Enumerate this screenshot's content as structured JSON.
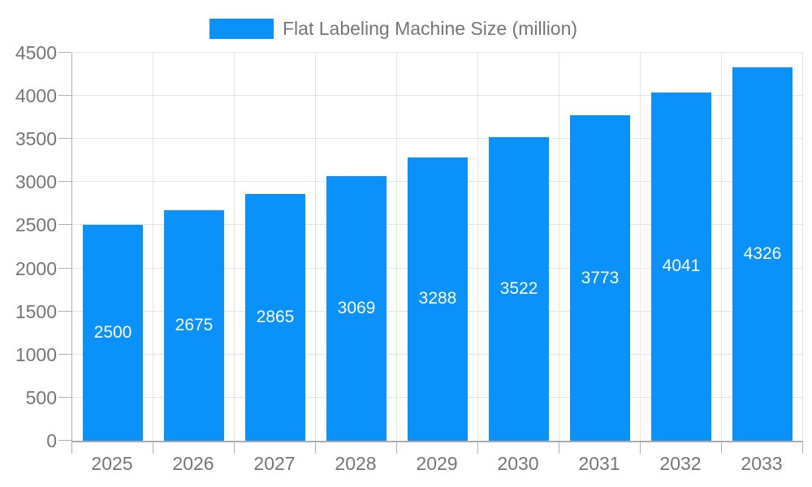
{
  "legend": {
    "label": "Flat Labeling Machine Size (million)"
  },
  "chart_data": {
    "type": "bar",
    "title": "",
    "xlabel": "",
    "ylabel": "",
    "categories": [
      "2025",
      "2026",
      "2027",
      "2028",
      "2029",
      "2030",
      "2031",
      "2032",
      "2033"
    ],
    "series": [
      {
        "name": "Flat Labeling Machine Size (million)",
        "values": [
          2500,
          2675,
          2865,
          3069,
          3288,
          3522,
          3773,
          4041,
          4326
        ],
        "color": "#0a91fa"
      }
    ],
    "ylim": [
      0,
      4500
    ],
    "yticks": [
      0,
      500,
      1000,
      1500,
      2000,
      2500,
      3000,
      3500,
      4000,
      4500
    ],
    "grid": true,
    "legend_position": "top",
    "bar_label_color": "#ffffff",
    "axis_text_color": "#757575",
    "grid_color": "#e4e4e4",
    "axis_line_color": "#b0b0b0"
  }
}
